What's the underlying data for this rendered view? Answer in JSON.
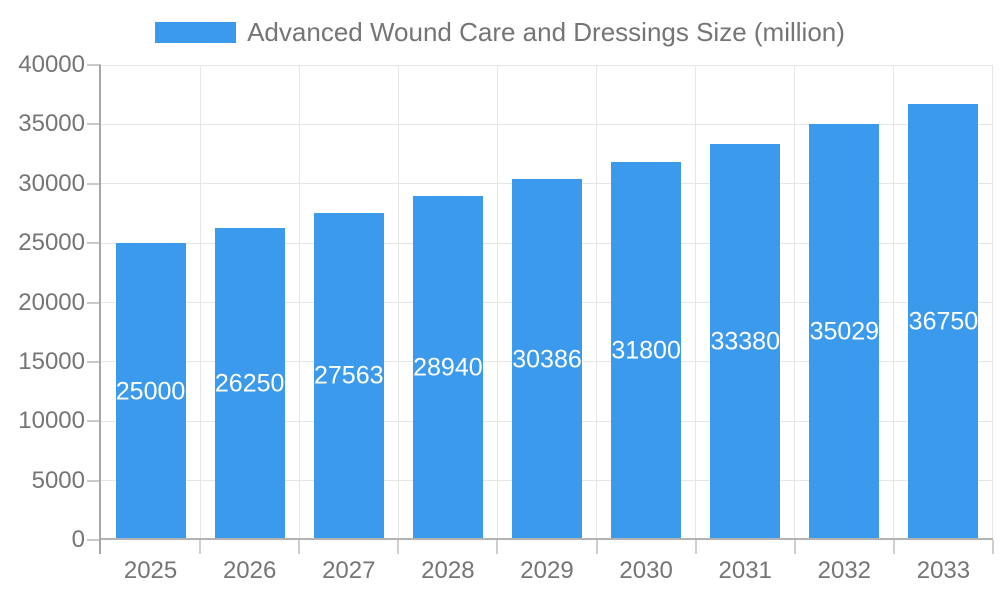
{
  "chart_data": {
    "type": "bar",
    "title": "Advanced Wound Care and Dressings Size (million)",
    "categories": [
      "2025",
      "2026",
      "2027",
      "2028",
      "2029",
      "2030",
      "2031",
      "2032",
      "2033"
    ],
    "series": [
      {
        "name": "Advanced Wound Care and Dressings Size (million)",
        "values": [
          25000,
          26250,
          27563,
          28940,
          30386,
          31800,
          33380,
          35029,
          36750
        ]
      }
    ],
    "bar_value_labels": [
      "25000",
      "26250",
      "27563",
      "28940",
      "30386",
      "31800",
      "33380",
      "35029",
      "36750"
    ],
    "xlabel": "",
    "ylabel": "",
    "ylim": [
      0,
      40000
    ],
    "ytick_step": 5000,
    "ytick_labels": [
      "0",
      "5000",
      "10000",
      "15000",
      "20000",
      "25000",
      "30000",
      "35000",
      "40000"
    ],
    "grid": true,
    "legend_position": "top",
    "colors": {
      "bar": "#3b9aec",
      "grid": "#e6e6e6",
      "axis_y": "#a6a6a6",
      "axis_x": "#b3b3b3",
      "tick": "#c9c9c9",
      "tick_label": "#757575",
      "legend_label": "#757575",
      "bar_label": "#ffffff",
      "background": "#ffffff"
    }
  }
}
